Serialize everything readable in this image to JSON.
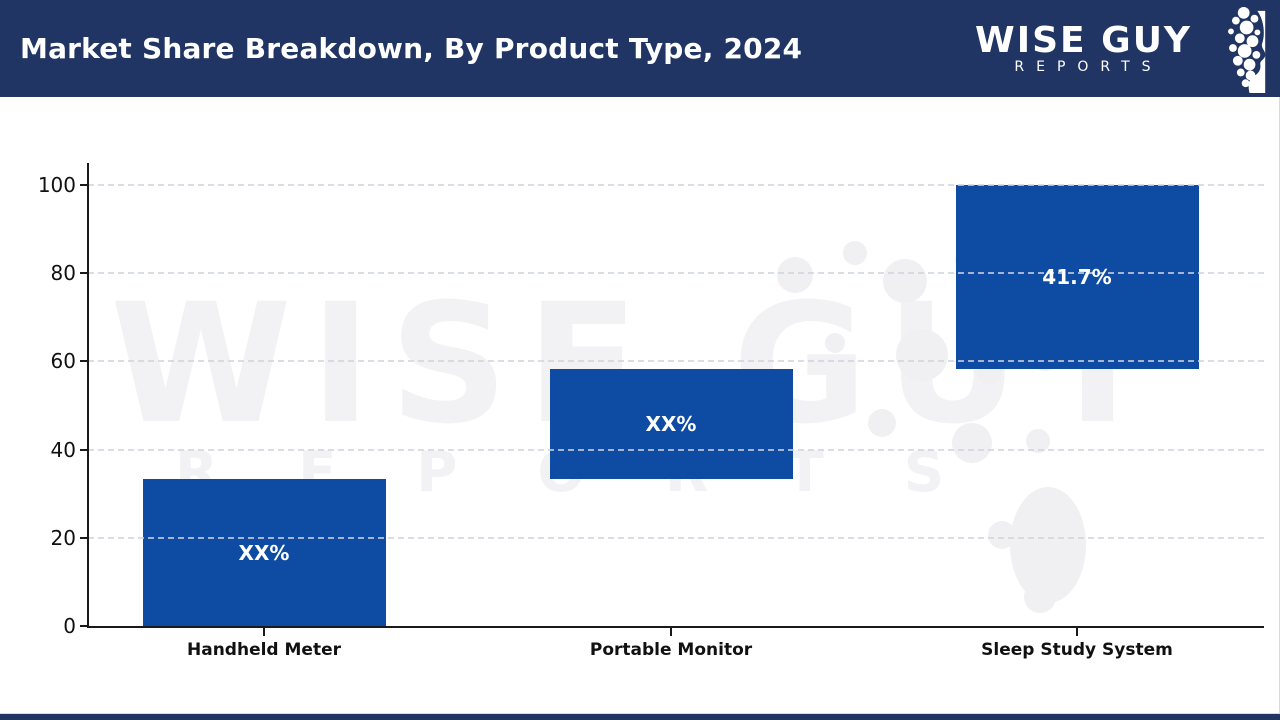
{
  "header": {
    "title": "Market Share Breakdown, By Product Type, 2024",
    "logo": {
      "line1": "WISE GUY",
      "line2": "REPORTS"
    }
  },
  "watermark": {
    "line1": "WISE GUY",
    "line2": "REPORTS"
  },
  "colors": {
    "header_bg": "#203563",
    "bar": "#0d4ca2",
    "bar_label": "#ffffff",
    "grid": "#ced3dc",
    "axis": "#1a1a1a",
    "watermark": "#f2f2f4"
  },
  "chart_data": {
    "type": "bar",
    "subtype": "waterfall",
    "title": "Market Share Breakdown, By Product Type, 2024",
    "categories": [
      "Handheld Meter",
      "Portable Monitor",
      "Sleep Study System"
    ],
    "segments": [
      {
        "category": "Handheld Meter",
        "start": 0,
        "end": 33.3,
        "value_label": "XX%"
      },
      {
        "category": "Portable Monitor",
        "start": 33.3,
        "end": 58.3,
        "value_label": "XX%"
      },
      {
        "category": "Sleep Study System",
        "start": 58.3,
        "end": 100,
        "value_label": "41.7%"
      }
    ],
    "yticks": [
      0,
      20,
      40,
      60,
      80,
      100
    ],
    "ylim": [
      0,
      105
    ],
    "xlabel": "",
    "ylabel": "",
    "grid": "horizontal dashed",
    "legend": "none"
  }
}
